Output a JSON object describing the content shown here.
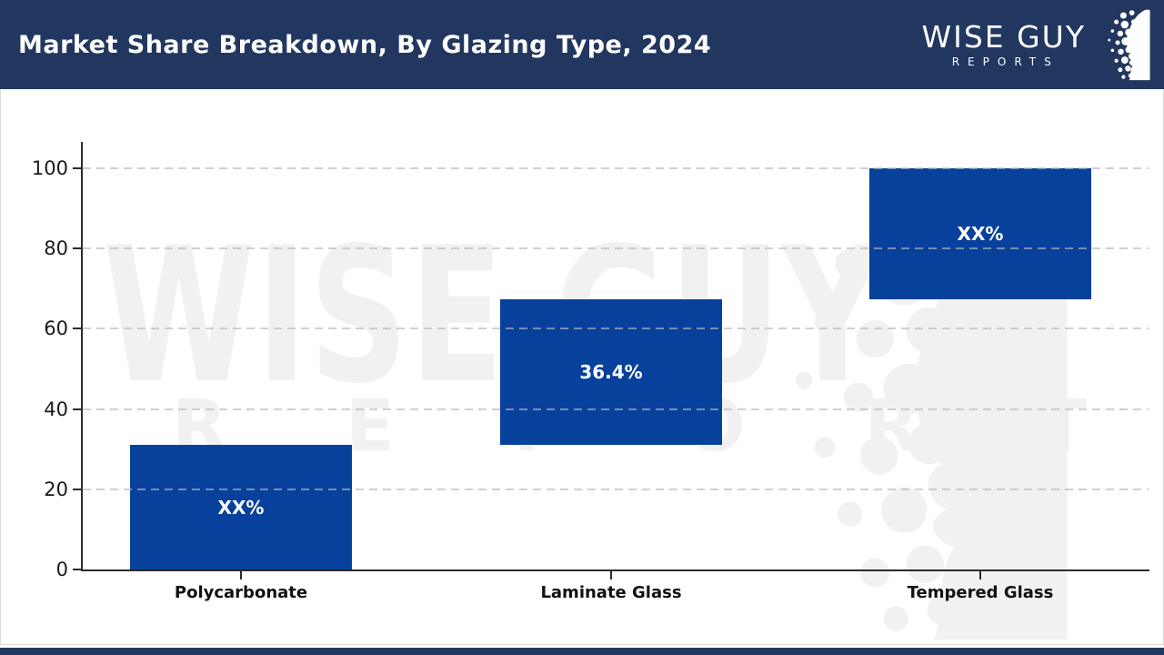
{
  "header": {
    "title": "Market Share Breakdown, By Glazing Type, 2024",
    "logo_line1": "WISE GUY",
    "logo_line2": "REPORTS"
  },
  "watermark": {
    "line1": "WISE GUY",
    "line2": "R E P O R T S"
  },
  "colors": {
    "header_navy": "#223760",
    "bar_blue": "#07419c",
    "gridline_gray": "#d9d9d9",
    "watermark_gray": "#f1f1f1"
  },
  "chart_data": {
    "type": "bar",
    "subtype": "floating-waterfall-segments",
    "title": "Market Share Breakdown, By Glazing Type, 2024",
    "categories": [
      "Polycarbonate",
      "Laminate Glass",
      "Tempered Glass"
    ],
    "series": [
      {
        "name": "Polycarbonate",
        "base": 0,
        "value": 31.0,
        "label": "XX%"
      },
      {
        "name": "Laminate Glass",
        "base": 31.0,
        "value": 36.4,
        "label": "36.4%"
      },
      {
        "name": "Tempered Glass",
        "base": 67.4,
        "value": 32.6,
        "label": "XX%"
      }
    ],
    "xlabel": "",
    "ylabel": "",
    "ylim": [
      0,
      100
    ],
    "yticks": [
      0,
      20,
      40,
      60,
      80,
      100
    ],
    "grid": "horizontal-dashed",
    "legend": "none",
    "bar_color": "#07419c",
    "bar_label_color": "#ffffff"
  }
}
